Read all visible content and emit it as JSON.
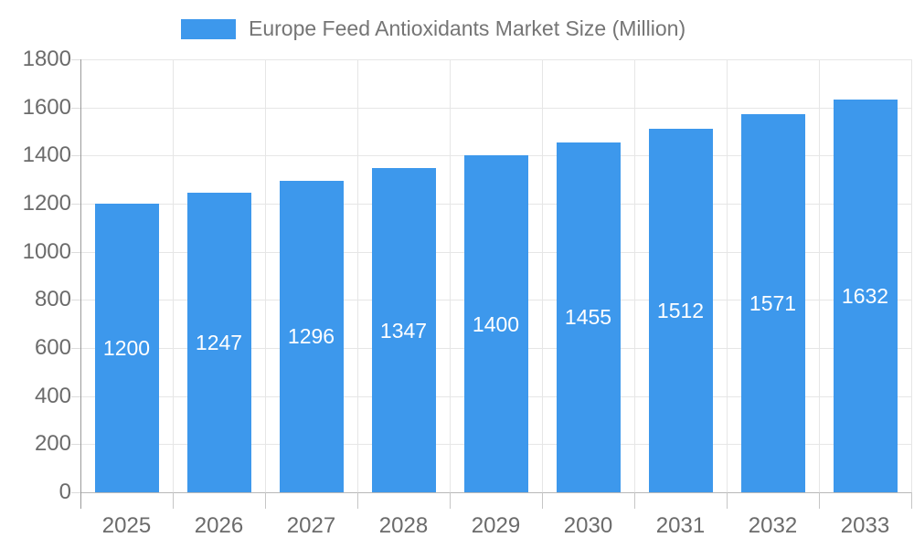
{
  "chart_data": {
    "type": "bar",
    "title": "Europe Feed Antioxidants Market Size (Million)",
    "categories": [
      "2025",
      "2026",
      "2027",
      "2028",
      "2029",
      "2030",
      "2031",
      "2032",
      "2033"
    ],
    "values": [
      1200,
      1247,
      1296,
      1347,
      1400,
      1455,
      1512,
      1571,
      1632
    ],
    "xlabel": "",
    "ylabel": "",
    "ylim": [
      0,
      1800
    ],
    "ytick_step": 200,
    "grid": true,
    "legend_position": "top",
    "bar_color": "#3D98EC",
    "bar_label_color": "#ffffff",
    "axis_label_color": "#6b6b6b",
    "legend_text_color": "#757575",
    "gridline_color": "#e6e6e6",
    "background_color": "#ffffff"
  }
}
